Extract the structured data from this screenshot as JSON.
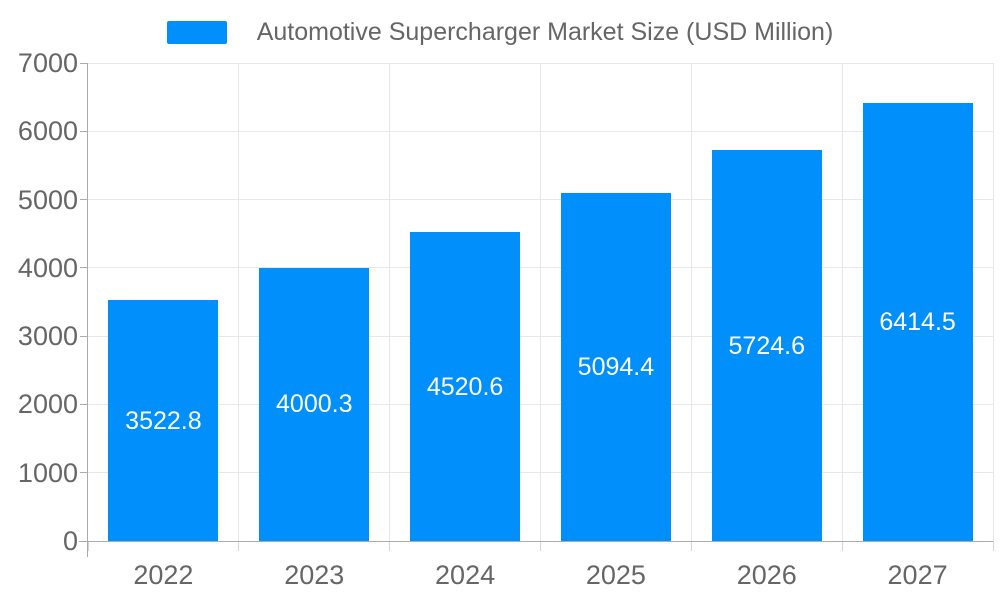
{
  "chart_data": {
    "type": "bar",
    "title": "Automotive Supercharger Market Size (USD Million)",
    "legend_position": "top",
    "categories": [
      "2022",
      "2023",
      "2024",
      "2025",
      "2026",
      "2027"
    ],
    "series": [
      {
        "name": "Automotive Supercharger Market Size (USD Million)",
        "values": [
          3522.8,
          4000.3,
          4520.6,
          5094.4,
          5724.6,
          6414.5
        ]
      }
    ],
    "data_labels": [
      "3522.8",
      "4000.3",
      "4520.6",
      "5094.4",
      "5724.6",
      "6414.5"
    ],
    "xlabel": "",
    "ylabel": "",
    "ylim": [
      0,
      7000
    ],
    "ytick_step": 1000,
    "yticks": [
      0,
      1000,
      2000,
      3000,
      4000,
      5000,
      6000,
      7000
    ],
    "grid": true,
    "colors": {
      "bar": "#008FFB",
      "data_label_text": "#ffffff",
      "axis_text": "#666666",
      "grid_line": "#e7e7e7",
      "axis_line": "#ababab"
    }
  }
}
